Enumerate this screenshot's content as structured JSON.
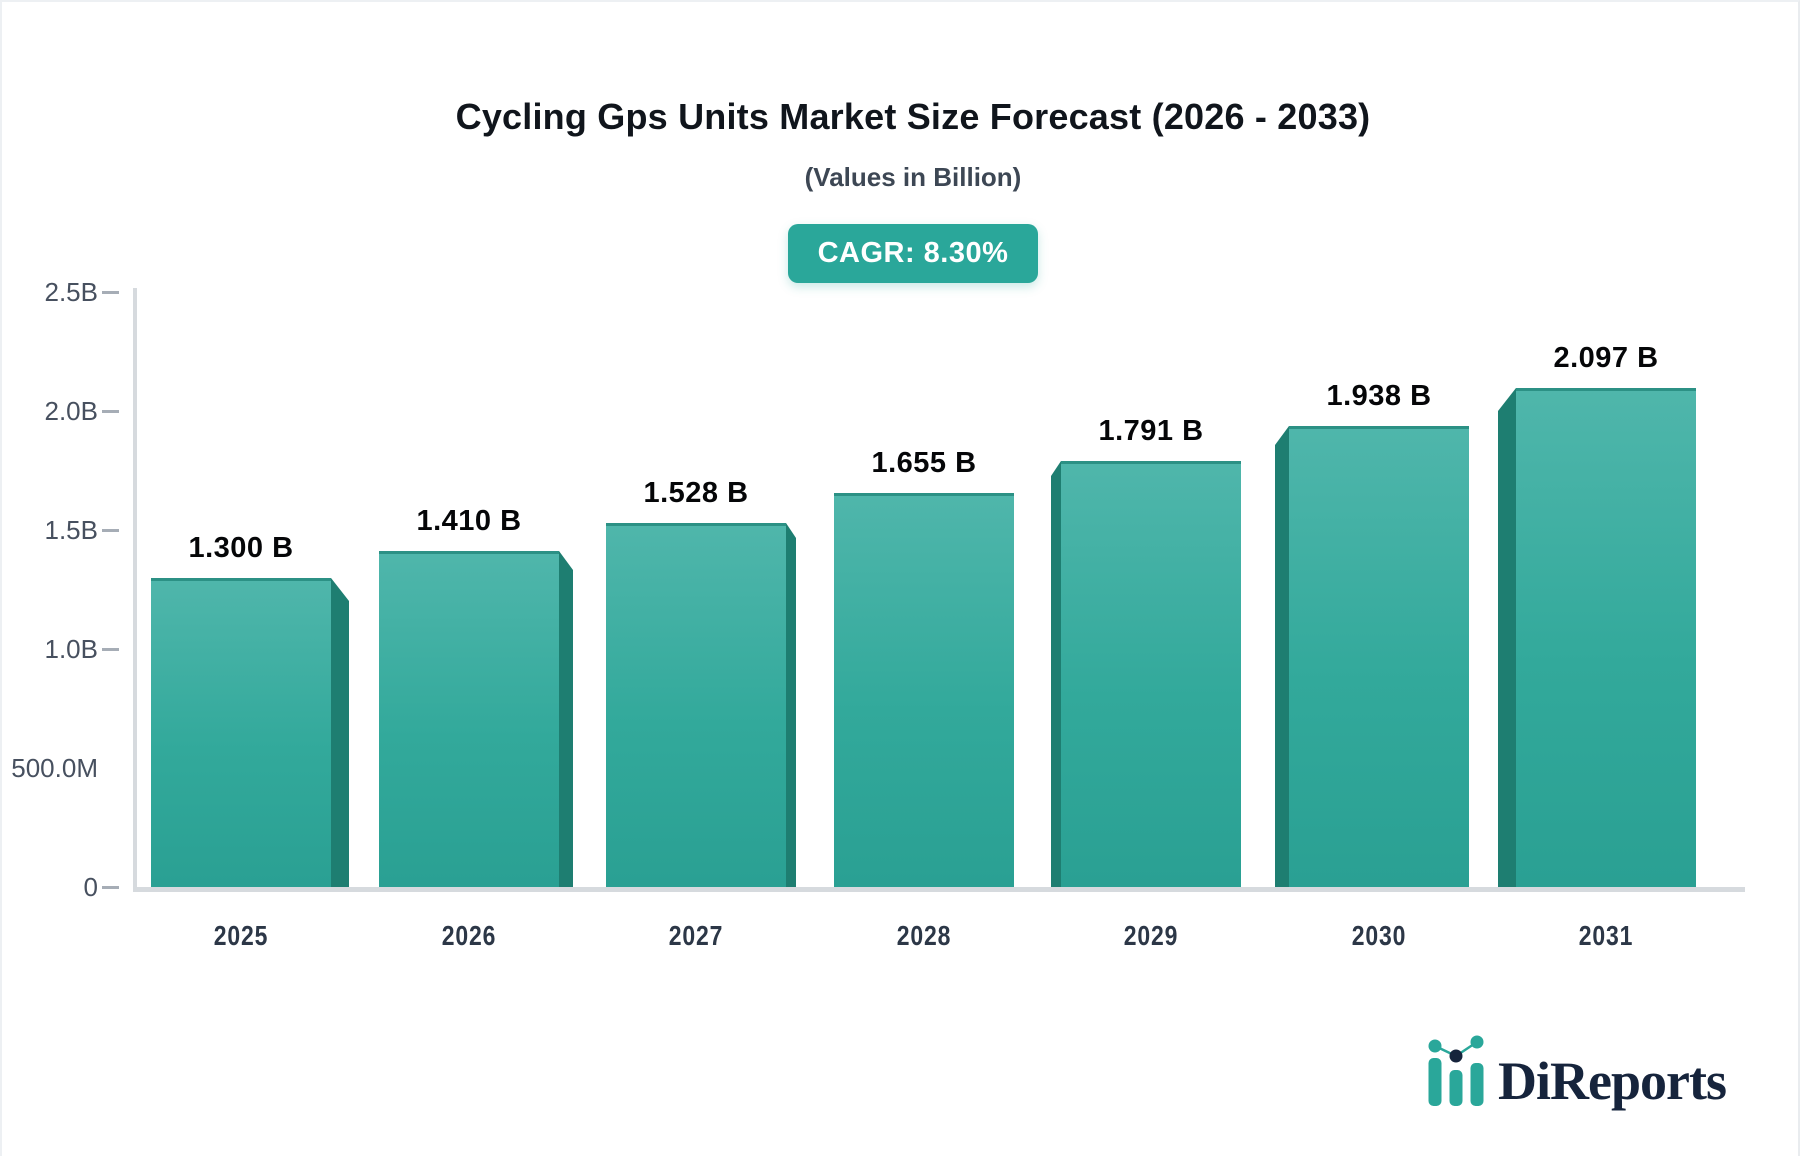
{
  "header": {
    "title": "Cycling Gps Units Market Size Forecast (2026 - 2033)",
    "subtitle": "(Values in Billion)",
    "cagr_label": "CAGR: 8.30%"
  },
  "chart_data": {
    "type": "bar",
    "title": "Cycling Gps Units Market Size Forecast (2026 - 2033)",
    "subtitle": "(Values in Billion)",
    "categories": [
      "2025",
      "2026",
      "2027",
      "2028",
      "2029",
      "2030",
      "2031"
    ],
    "values": [
      1.3,
      1.41,
      1.528,
      1.655,
      1.791,
      1.938,
      2.097
    ],
    "value_labels": [
      "1.300 B",
      "1.410 B",
      "1.528 B",
      "1.655 B",
      "1.791 B",
      "1.938 B",
      "2.097 B"
    ],
    "xlabel": "",
    "ylabel": "",
    "ylim": [
      0,
      2.5
    ],
    "grid": false,
    "legend": "none",
    "y_ticks": [
      {
        "label": "2.5B",
        "value": 2.5,
        "dash": true
      },
      {
        "label": "2.0B",
        "value": 2.0,
        "dash": true
      },
      {
        "label": "1.5B",
        "value": 1.5,
        "dash": true
      },
      {
        "label": "1.0B",
        "value": 1.0,
        "dash": true
      },
      {
        "label": "500.0M",
        "value": 0.5,
        "dash": false
      },
      {
        "label": "0",
        "value": 0,
        "dash": true
      }
    ]
  },
  "colors": {
    "accent_teal": "#2aa79a",
    "bar_face_top": "#4fb6ab",
    "bar_face_bottom": "#2aa093",
    "bar_side": "#1e7e71",
    "axis_line": "#d6dade",
    "tick_dash": "#a6adb6",
    "y_label": "#47505f",
    "x_label": "#2c3747",
    "value_label": "#050608",
    "logo_navy": "#16243c"
  },
  "logo": {
    "text": "DiReports",
    "mark": "mini-bar-chart-with-trend-dots"
  }
}
